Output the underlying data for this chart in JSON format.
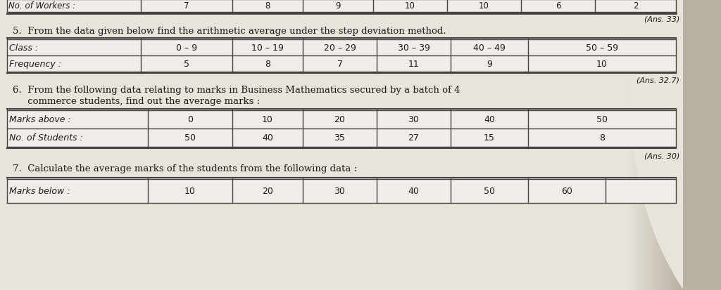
{
  "background_color": "#b8b0a0",
  "page_color": "#e8e4dc",
  "table_bg": "#f0ede8",
  "table_border": "#444444",
  "font_color": "#1a1a1a",
  "ans33_text": "(Ans. 33)",
  "q5_text": "5.  From the data given below find the arithmetic average under the step deviation method.",
  "table1_headers": [
    "Class :",
    "0 – 9",
    "10 – 19",
    "20 – 29",
    "30 – 39",
    "40 – 49",
    "50 – 59"
  ],
  "table1_row2": [
    "Frequency :",
    "5",
    "8",
    "7",
    "11",
    "9",
    "10"
  ],
  "ans327_text": "(Ans. 32.7)",
  "q6_text_line1": "6.  From the following data relating to marks in Business Mathematics secured by a batch of 4",
  "q6_text_line2": "     commerce students, find out the average marks :",
  "table2_headers": [
    "Marks above :",
    "0",
    "10",
    "20",
    "30",
    "40",
    "50"
  ],
  "table2_row2": [
    "No. of Students :",
    "50",
    "40",
    "35",
    "27",
    "15",
    "8"
  ],
  "ans30_text": "(Ans. 30)",
  "q7_text": "7.  Calculate the average marks of the students from the following data :",
  "table3_row1": [
    "Marks below :",
    "10",
    "20",
    "30",
    "40",
    "50",
    "60"
  ],
  "top_row_label": "No. of Workers :",
  "top_row_vals": [
    "7",
    "8",
    "9",
    "10",
    "10",
    "6",
    "2"
  ],
  "curl_color": "#c0b8a8"
}
